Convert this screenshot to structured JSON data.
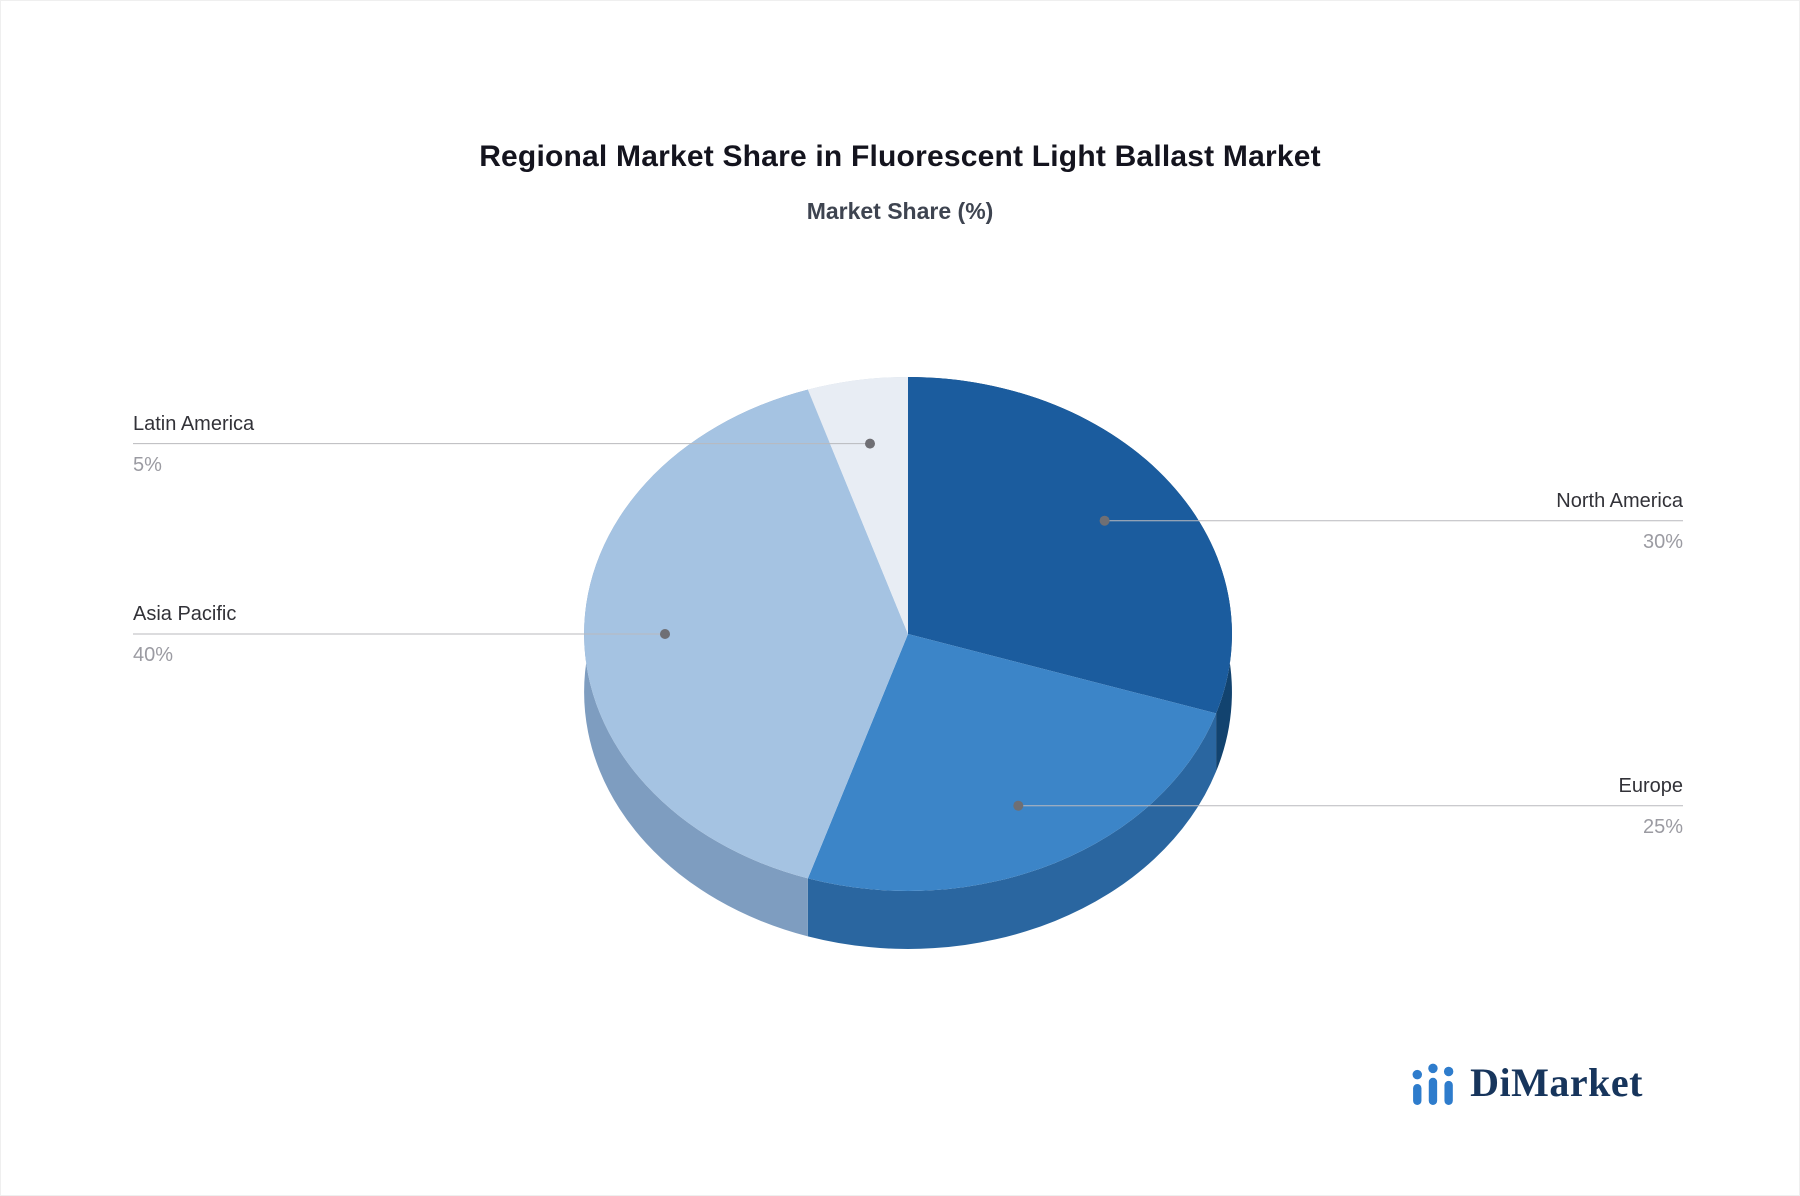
{
  "chart_data": {
    "type": "pie",
    "title": "Regional Market Share in Fluorescent Light Ballast Market",
    "subtitle": "Market Share (%)",
    "unit": "%",
    "labels": [
      "North America",
      "Europe",
      "Asia Pacific",
      "Latin America"
    ],
    "values": [
      30,
      25,
      40,
      5
    ],
    "value_labels": [
      "30%",
      "25%",
      "40%",
      "5%"
    ],
    "colors": [
      "#1b5c9e",
      "#3c85c8",
      "#a5c3e2",
      "#e8edf4"
    ],
    "depth_colors": [
      "#12436f",
      "#2a66a0",
      "#7e9dc0",
      "#c9d3de"
    ],
    "start_angle_deg": -90,
    "direction": "clockwise",
    "style_3d": true,
    "legend": "none",
    "label_layout": "callout-lines"
  },
  "branding": {
    "logo_text": "DiMarket",
    "logo_text_color": "#17355c",
    "logo_icon": "bar-chart-icon",
    "logo_icon_color": "#2e7ccc"
  }
}
